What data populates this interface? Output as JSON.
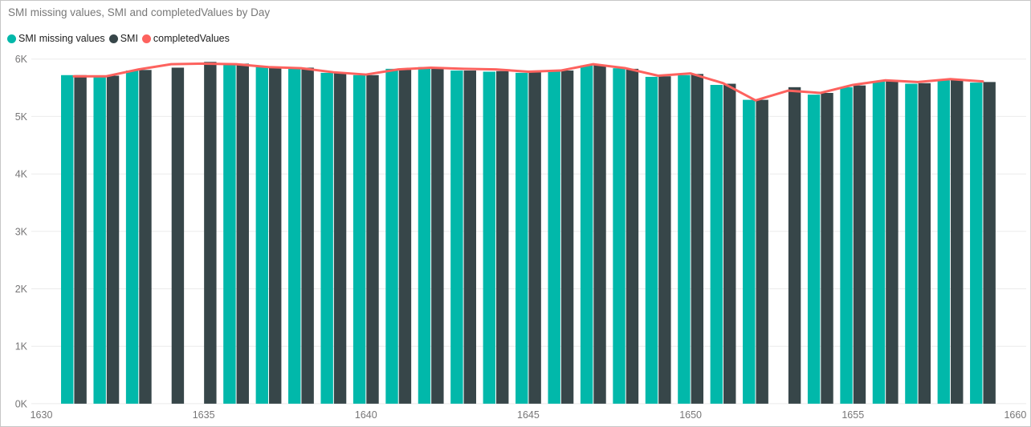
{
  "card": {
    "background": "#ffffff",
    "border_color": "#c6c6c6"
  },
  "chart_data": {
    "type": "combo-bar-line",
    "title": "SMI missing values, SMI and completedValues by Day",
    "x_field": "Day",
    "x": [
      1631,
      1632,
      1633,
      1634,
      1635,
      1636,
      1637,
      1638,
      1639,
      1640,
      1641,
      1642,
      1643,
      1644,
      1645,
      1646,
      1647,
      1648,
      1649,
      1650,
      1651,
      1652,
      1653,
      1654,
      1655,
      1656,
      1657,
      1658,
      1659
    ],
    "x_ticks": [
      1630,
      1635,
      1640,
      1645,
      1650,
      1655,
      1660
    ],
    "y_ticks": [
      "0K",
      "1K",
      "2K",
      "3K",
      "4K",
      "5K",
      "6K"
    ],
    "ylim": [
      0,
      6000
    ],
    "grid": true,
    "gridline_color": "#ebebeb",
    "axis_label_color": "#777677",
    "legend_position": "top-left",
    "series": [
      {
        "name": "SMI missing values",
        "type": "bar",
        "color": "#01B8AA",
        "values": [
          5720,
          5700,
          5800,
          null,
          null,
          5920,
          5870,
          5850,
          5760,
          5720,
          5830,
          5860,
          5800,
          5780,
          5760,
          5780,
          5890,
          5840,
          5690,
          5720,
          5550,
          5290,
          null,
          5380,
          5510,
          5610,
          5570,
          5630,
          5590
        ]
      },
      {
        "name": "SMI",
        "type": "bar",
        "color": "#374649",
        "values": [
          5720,
          5710,
          5810,
          5850,
          5950,
          5920,
          5870,
          5850,
          5760,
          5720,
          5830,
          5860,
          5800,
          5790,
          5770,
          5800,
          5900,
          5830,
          5700,
          5740,
          5570,
          5290,
          5510,
          5410,
          5540,
          5620,
          5580,
          5640,
          5600
        ]
      },
      {
        "name": "completedValues",
        "type": "line",
        "color": "#FD625E",
        "values": [
          5700,
          5700,
          5820,
          5910,
          5920,
          5910,
          5860,
          5840,
          5770,
          5730,
          5820,
          5850,
          5830,
          5820,
          5780,
          5800,
          5910,
          5840,
          5710,
          5750,
          5580,
          5280,
          5450,
          5410,
          5550,
          5630,
          5600,
          5650,
          5610
        ]
      }
    ]
  }
}
